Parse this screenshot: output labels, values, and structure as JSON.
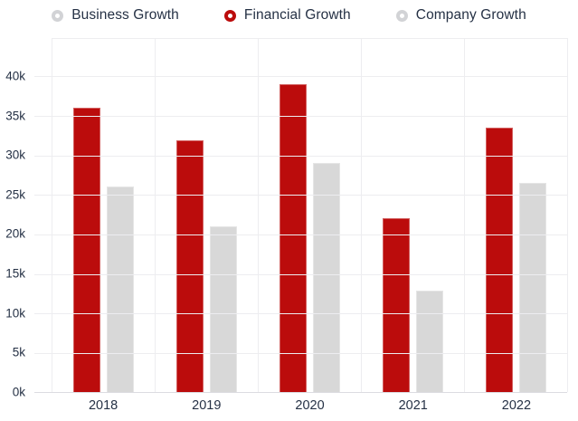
{
  "legend": {
    "items": [
      {
        "label": "Business Growth",
        "marker_color": "#d2d3d6"
      },
      {
        "label": "Financial Growth",
        "marker_color": "#bb0c0c"
      },
      {
        "label": "Company Growth",
        "marker_color": "#d2d3d6"
      }
    ]
  },
  "chart_data": {
    "type": "bar",
    "title": "",
    "xlabel": "",
    "ylabel": "",
    "categories": [
      "2018",
      "2019",
      "2020",
      "2021",
      "2022"
    ],
    "series": [
      {
        "name": "Financial Growth",
        "color": "#bb0c0c",
        "values": [
          36000,
          31800,
          39000,
          22000,
          33500
        ]
      },
      {
        "name": "Company Growth",
        "color": "#d8d8d8",
        "values": [
          26000,
          21000,
          29000,
          12800,
          26500
        ]
      }
    ],
    "yticks": [
      "0k",
      "5k",
      "10k",
      "15k",
      "20k",
      "25k",
      "30k",
      "35k",
      "40k"
    ],
    "ytick_step": 5000,
    "ylim": [
      0,
      44800
    ],
    "grid": true,
    "legend_position": "top"
  },
  "colors": {
    "accent_red": "#bb0c0c",
    "bar_gray": "#d8d8d8",
    "text": "#253145",
    "grid": "#ededf0",
    "axis": "#dcdce1",
    "background": "#ffffff"
  }
}
